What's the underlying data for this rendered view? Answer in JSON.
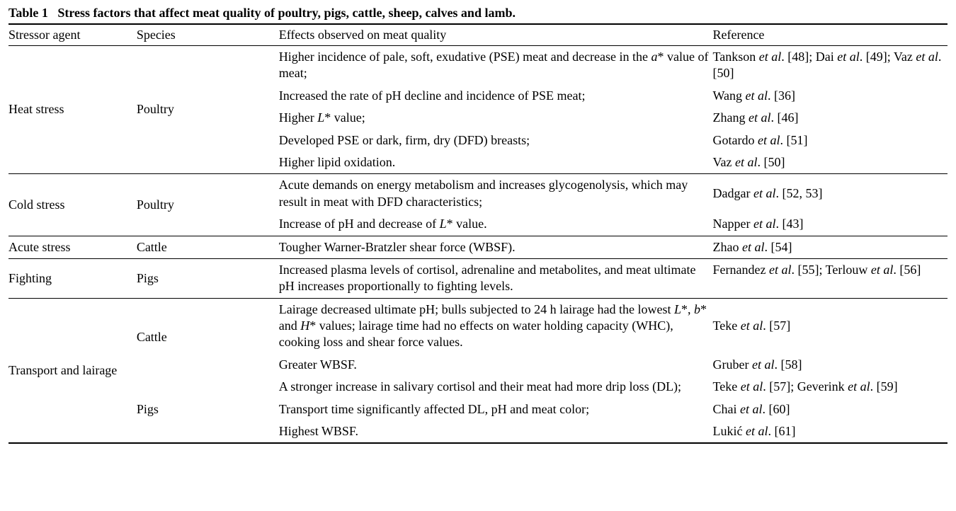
{
  "title_prefix": "Table 1",
  "title_rest": "Stress factors that affect meat quality of poultry, pigs, cattle, sheep, calves and lamb.",
  "columns": {
    "stressor": "Stressor agent",
    "species": "Species",
    "effects": "Effects observed on meat quality",
    "reference": "Reference"
  },
  "rows": {
    "r1": {
      "stressor": "Heat stress",
      "species": "Poultry",
      "eff1_a": "Higher incidence of pale, soft, exudative (PSE) meat and decrease in the ",
      "eff1_b": "a",
      "eff1_c": "* value of meat;",
      "ref1_a": "Tankson ",
      "ref1_b": "et al",
      "ref1_c": ". [48]; Dai ",
      "ref1_d": "et al",
      "ref1_e": ". [49]; Vaz ",
      "ref1_f": "et al",
      "ref1_g": ". [50]",
      "eff2": "Increased the rate of pH decline and incidence of PSE meat;",
      "ref2_a": "Wang ",
      "ref2_b": "et al",
      "ref2_c": ". [36]",
      "eff3_a": "Higher ",
      "eff3_b": "L",
      "eff3_c": "* value;",
      "ref3_a": "Zhang ",
      "ref3_b": "et al",
      "ref3_c": ". [46]",
      "eff4": "Developed PSE or dark, firm, dry (DFD) breasts;",
      "ref4_a": "Gotardo ",
      "ref4_b": "et al",
      "ref4_c": ". [51]",
      "eff5": "Higher lipid oxidation.",
      "ref5_a": "Vaz ",
      "ref5_b": "et al",
      "ref5_c": ". [50]"
    },
    "r2": {
      "stressor": "Cold stress",
      "species": "Poultry",
      "eff1": "Acute demands on energy metabolism and increases glycogenolysis, which may result in meat with DFD characteristics;",
      "ref1_a": "Dadgar ",
      "ref1_b": "et al",
      "ref1_c": ". [52, 53]",
      "eff2_a": "Increase of pH and decrease of ",
      "eff2_b": "L",
      "eff2_c": "* value.",
      "ref2_a": "Napper ",
      "ref2_b": "et al",
      "ref2_c": ". [43]"
    },
    "r3": {
      "stressor": "Acute stress",
      "species": "Cattle",
      "eff1": "Tougher Warner-Bratzler shear force (WBSF).",
      "ref1_a": "Zhao ",
      "ref1_b": "et al",
      "ref1_c": ". [54]"
    },
    "r4": {
      "stressor": "Fighting",
      "species": "Pigs",
      "eff1": "Increased plasma levels of cortisol, adrenaline and metabolites, and meat ultimate pH increases proportionally to fighting levels.",
      "ref1_a": "Fernandez ",
      "ref1_b": "et al",
      "ref1_c": ". [55]; Terlouw ",
      "ref1_d": "et al",
      "ref1_e": ". [56]"
    },
    "r5": {
      "stressor": "Transport and lairage",
      "species1": "Cattle",
      "eff1_a": "Lairage decreased ultimate pH; bulls subjected to 24 h lairage had the lowest ",
      "eff1_b": "L",
      "eff1_c": "*, ",
      "eff1_d": "b",
      "eff1_e": "* and ",
      "eff1_f": "H",
      "eff1_g": "* values; lairage time had no effects on water holding capacity (WHC), cooking loss and shear force values.",
      "ref1_a": "Teke ",
      "ref1_b": "et al",
      "ref1_c": ". [57]",
      "eff2": "Greater WBSF.",
      "ref2_a": "Gruber ",
      "ref2_b": "et al",
      "ref2_c": ". [58]",
      "species2": "Pigs",
      "eff3": "A stronger increase in salivary cortisol and their meat had more drip loss (DL);",
      "ref3_a": "Teke ",
      "ref3_b": "et al",
      "ref3_c": ". [57]; Geverink ",
      "ref3_d": "et al",
      "ref3_e": ". [59]",
      "eff4": "Transport time significantly affected DL, pH and meat color;",
      "ref4_a": "Chai ",
      "ref4_b": "et al",
      "ref4_c": ". [60]",
      "eff5": "Highest WBSF.",
      "ref5_a": "Lukić ",
      "ref5_b": "et al",
      "ref5_c": ". [61]"
    }
  }
}
